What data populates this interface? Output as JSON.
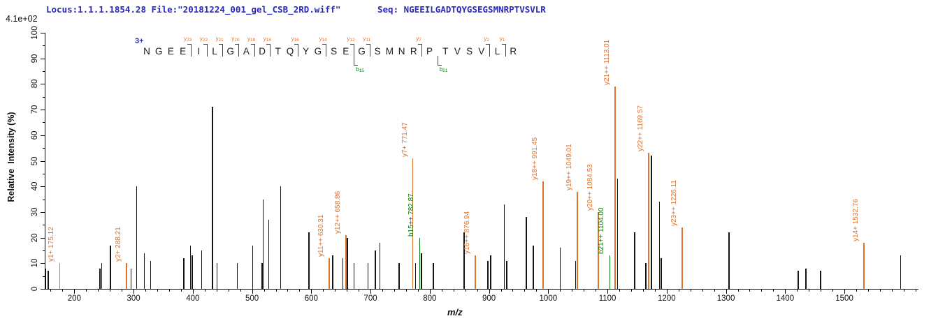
{
  "header": {
    "locus_file": "Locus:1.1.1.1854.28 File:\"20181224_001_gel_CSB_2RD.wiff\"",
    "seq": "Seq: NGEEILGADTQYGSEGSMNRPTVSVLR"
  },
  "annotation": {
    "charge": "3+",
    "residues": "NGEEILGADTQYGSEGSMNRPTVSVLR",
    "cuts": [
      {
        "after": 4,
        "y": "y23"
      },
      {
        "after": 5,
        "y": "y22"
      },
      {
        "after": 6,
        "y": "y21"
      },
      {
        "after": 7,
        "y": "y20"
      },
      {
        "after": 8,
        "y": "y19"
      },
      {
        "after": 9,
        "y": "y18"
      },
      {
        "after": 11,
        "y": "y16"
      },
      {
        "after": 13,
        "y": "y14"
      },
      {
        "after": 15,
        "y": "y12",
        "b": "b15"
      },
      {
        "after": 16,
        "y": "y11"
      },
      {
        "after": 20,
        "y": "y7"
      },
      {
        "after": 21,
        "b": "b21"
      },
      {
        "after": 25,
        "y": "y2"
      },
      {
        "after": 26,
        "y": "y1"
      }
    ]
  },
  "colors": {
    "y_ion": "#e1722c",
    "b_ion": "#0b7d0b",
    "peak": "#141414",
    "header_text": "#2929c0",
    "charge_label": "#2929c0",
    "axis": "#000000"
  },
  "chart_data": {
    "type": "bar",
    "subtype": "ms2-fragment-mass-spectrum",
    "xlabel": "m/z",
    "ylabel": "Relative  Intensity (%)",
    "y_scale_note": "4.1e+02",
    "xlim": [
      150,
      1625
    ],
    "ylim": [
      0,
      100
    ],
    "x_major_tick_labels": [
      200,
      300,
      400,
      500,
      600,
      700,
      800,
      900,
      1000,
      1100,
      1200,
      1300,
      1400,
      1500
    ],
    "y_major_tick_labels": [
      0,
      10,
      20,
      30,
      40,
      50,
      60,
      70,
      80,
      90,
      100
    ],
    "x_minor_tick_step": 20,
    "y_minor_tick_step": 5,
    "legend": "none",
    "grid": false,
    "peak_format": [
      "mz",
      "relative_intensity_pct",
      "ion_series",
      "label"
    ],
    "peaks": [
      [
        152,
        8,
        "",
        ""
      ],
      [
        156,
        7,
        "",
        ""
      ],
      [
        175.12,
        10,
        "y",
        "y1+ 175.12"
      ],
      [
        243,
        8,
        "",
        ""
      ],
      [
        246,
        10,
        "",
        ""
      ],
      [
        261,
        17,
        "",
        ""
      ],
      [
        288.21,
        10,
        "y",
        "y2+ 288.21"
      ],
      [
        296,
        8,
        "",
        ""
      ],
      [
        305,
        40,
        "",
        ""
      ],
      [
        318,
        14,
        "",
        ""
      ],
      [
        329,
        11,
        "",
        ""
      ],
      [
        385,
        12,
        "",
        ""
      ],
      [
        396,
        17,
        "",
        ""
      ],
      [
        399,
        13,
        "",
        ""
      ],
      [
        415,
        15,
        "",
        ""
      ],
      [
        433,
        71,
        "",
        ""
      ],
      [
        441,
        10,
        "",
        ""
      ],
      [
        475,
        10,
        "",
        ""
      ],
      [
        501,
        17,
        "",
        ""
      ],
      [
        517,
        10,
        "",
        ""
      ],
      [
        519,
        35,
        "",
        ""
      ],
      [
        528,
        27,
        "",
        ""
      ],
      [
        548,
        40,
        "",
        ""
      ],
      [
        596,
        22,
        "",
        ""
      ],
      [
        630.31,
        12,
        "y",
        "y11++ 630.31"
      ],
      [
        636,
        13,
        "",
        ""
      ],
      [
        653,
        12,
        "",
        ""
      ],
      [
        658.86,
        21,
        "y",
        "y12++ 658.86"
      ],
      [
        661,
        20,
        "",
        ""
      ],
      [
        672,
        10,
        "",
        ""
      ],
      [
        696,
        10,
        "",
        ""
      ],
      [
        708,
        15,
        "",
        ""
      ],
      [
        716,
        18,
        "",
        ""
      ],
      [
        748,
        10,
        "",
        ""
      ],
      [
        771.47,
        51,
        "y",
        "y7+ 771.47"
      ],
      [
        776,
        10,
        "",
        ""
      ],
      [
        782.87,
        20,
        "b",
        "b15++ 782.87"
      ],
      [
        786,
        14,
        "",
        ""
      ],
      [
        806,
        10,
        "",
        ""
      ],
      [
        858,
        22,
        "",
        ""
      ],
      [
        876.94,
        13,
        "y",
        "y16++ 876.94"
      ],
      [
        898,
        11,
        "",
        ""
      ],
      [
        903,
        13,
        "",
        ""
      ],
      [
        926,
        33,
        "",
        ""
      ],
      [
        930,
        11,
        "",
        ""
      ],
      [
        963,
        28,
        "",
        ""
      ],
      [
        975,
        17,
        "",
        ""
      ],
      [
        991.45,
        42,
        "y",
        "y18++ 991.45"
      ],
      [
        1020,
        16,
        "",
        ""
      ],
      [
        1046,
        11,
        "",
        ""
      ],
      [
        1049.01,
        38,
        "y",
        "y19++ 1049.01"
      ],
      [
        1084.53,
        30,
        "y",
        "y20++ 1084.53"
      ],
      [
        1104.0,
        13,
        "b",
        "b21++ 1104.00"
      ],
      [
        1113.01,
        79,
        "y",
        "y21++ 1113.01"
      ],
      [
        1117,
        43,
        "",
        ""
      ],
      [
        1146,
        22,
        "",
        ""
      ],
      [
        1165,
        10,
        "",
        ""
      ],
      [
        1169.57,
        53,
        "y",
        "y22++ 1169.57"
      ],
      [
        1174,
        52,
        "",
        ""
      ],
      [
        1188,
        34,
        "",
        ""
      ],
      [
        1191,
        12,
        "",
        ""
      ],
      [
        1226.11,
        24,
        "y",
        "y23++ 1226.11"
      ],
      [
        1305,
        22,
        "",
        ""
      ],
      [
        1422,
        7,
        "",
        ""
      ],
      [
        1435,
        8,
        "",
        ""
      ],
      [
        1460,
        7,
        "",
        ""
      ],
      [
        1532.76,
        18,
        "y",
        "y14+ 1532.76"
      ],
      [
        1595,
        13,
        "",
        ""
      ]
    ]
  }
}
